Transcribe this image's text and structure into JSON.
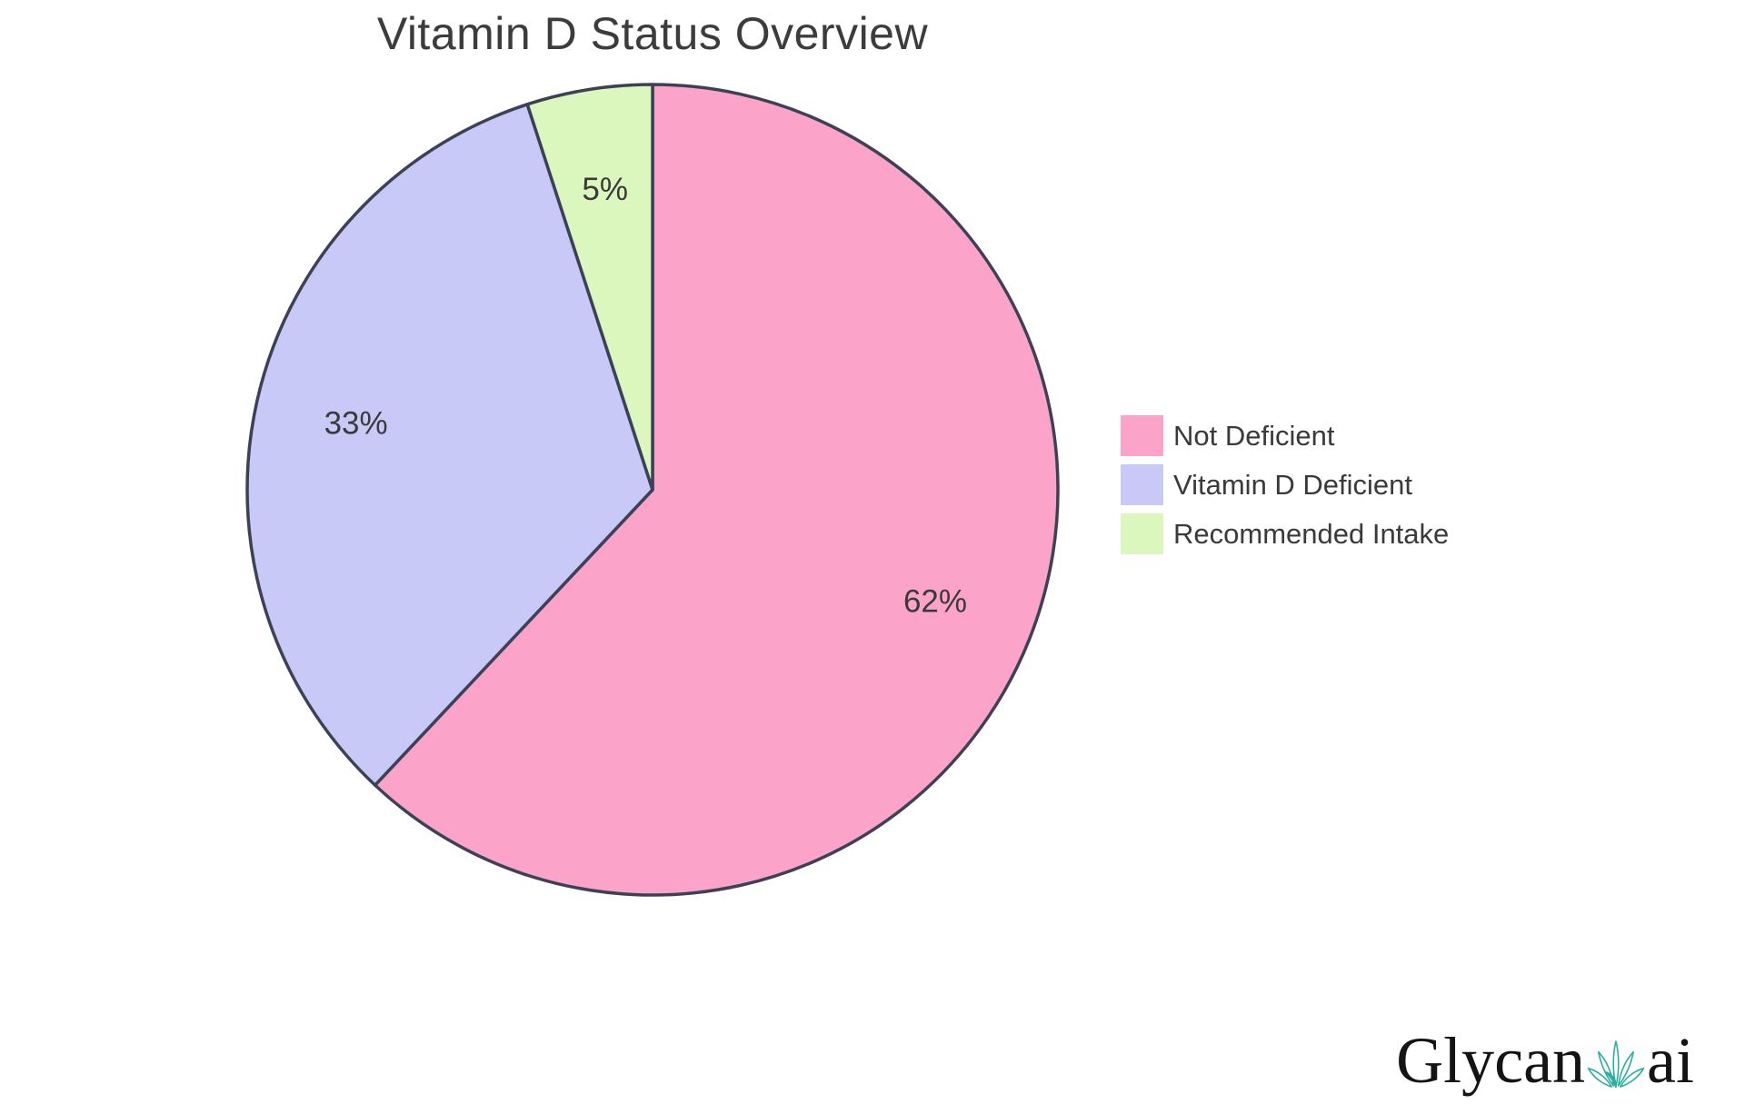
{
  "chart_data": {
    "type": "pie",
    "title": "Vitamin D Status Overview",
    "direction": "clockwise",
    "start_angle": "12-oclock",
    "edge_color": "#3D4156",
    "legend_position": "right",
    "slices": [
      {
        "label": "Not Deficient",
        "value": 62,
        "display": "62%",
        "color": "#FCA3C9"
      },
      {
        "label": "Vitamin D Deficient",
        "value": 33,
        "display": "33%",
        "color": "#C9C9F7"
      },
      {
        "label": "Recommended Intake",
        "value": 5,
        "display": "5%",
        "color": "#DCF7BE"
      }
    ]
  },
  "branding": {
    "wordmark_left": "Glycan",
    "wordmark_right": "ai",
    "icon": "aloe-plant-icon",
    "icon_color": "#2BAF9C"
  }
}
